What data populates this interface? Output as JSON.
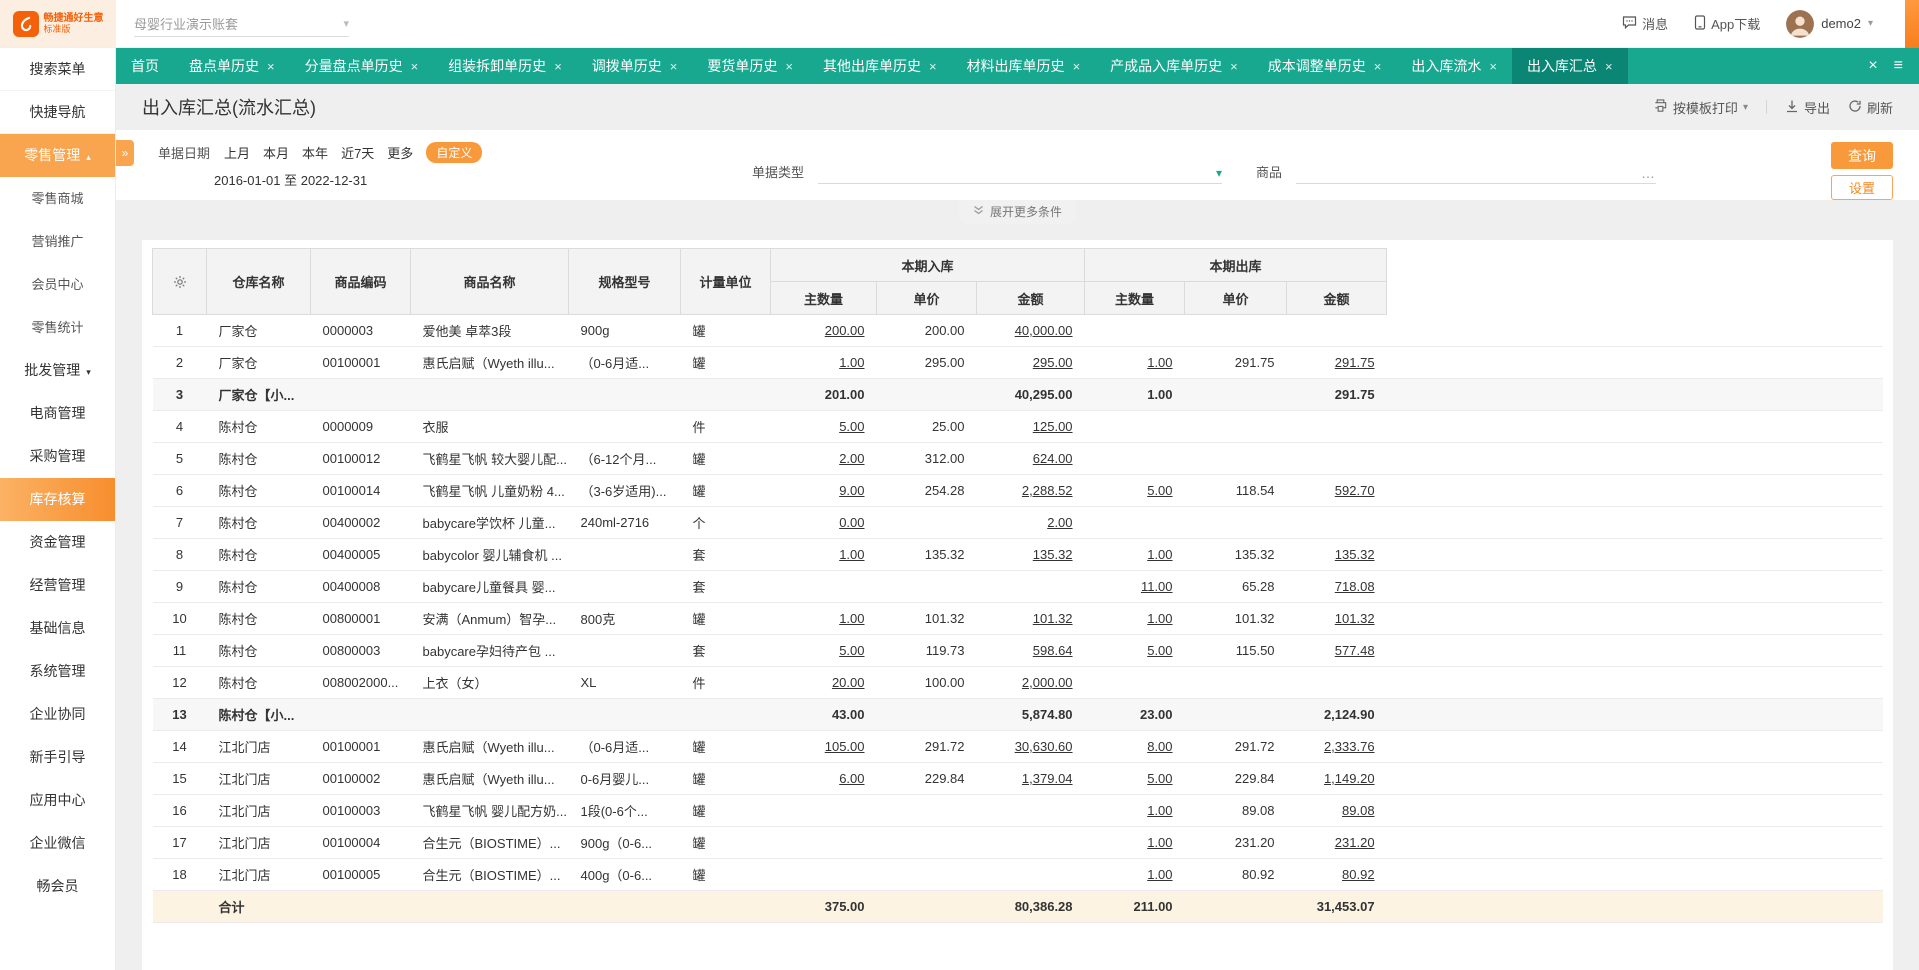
{
  "icons": {
    "close": "×",
    "menu": "≡",
    "expand": "»",
    "ellipsis": "…",
    "caret_down": "▾",
    "caret_up": "▴"
  },
  "topbar": {
    "logo_text": "畅捷通好生意",
    "logo_badge": "标准版",
    "account_select": "母婴行业演示账套",
    "messages_label": "消息",
    "app_download_label": "App下载",
    "username": "demo2"
  },
  "tabs": {
    "items": [
      {
        "label": "首页",
        "closable": false,
        "active": false
      },
      {
        "label": "盘点单历史",
        "closable": true,
        "active": false
      },
      {
        "label": "分量盘点单历史",
        "closable": true,
        "active": false
      },
      {
        "label": "组装拆卸单历史",
        "closable": true,
        "active": false
      },
      {
        "label": "调拨单历史",
        "closable": true,
        "active": false
      },
      {
        "label": "要货单历史",
        "closable": true,
        "active": false
      },
      {
        "label": "其他出库单历史",
        "closable": true,
        "active": false
      },
      {
        "label": "材料出库单历史",
        "closable": true,
        "active": false
      },
      {
        "label": "产成品入库单历史",
        "closable": true,
        "active": false
      },
      {
        "label": "成本调整单历史",
        "closable": true,
        "active": false
      },
      {
        "label": "出入库流水",
        "closable": true,
        "active": false
      },
      {
        "label": "出入库汇总",
        "closable": true,
        "active": true
      }
    ]
  },
  "sidebar": {
    "items": [
      {
        "label": "搜索菜单",
        "type": "item"
      },
      {
        "label": "快捷导航",
        "type": "item"
      },
      {
        "label": "零售管理",
        "type": "group",
        "state": "expanded"
      },
      {
        "label": "零售商城",
        "type": "subitem"
      },
      {
        "label": "营销推广",
        "type": "subitem"
      },
      {
        "label": "会员中心",
        "type": "subitem"
      },
      {
        "label": "零售统计",
        "type": "subitem"
      },
      {
        "label": "批发管理",
        "type": "group",
        "state": "collapsed"
      },
      {
        "label": "电商管理",
        "type": "item"
      },
      {
        "label": "采购管理",
        "type": "item"
      },
      {
        "label": "库存核算",
        "type": "item",
        "active": true
      },
      {
        "label": "资金管理",
        "type": "item"
      },
      {
        "label": "经营管理",
        "type": "item"
      },
      {
        "label": "基础信息",
        "type": "item"
      },
      {
        "label": "系统管理",
        "type": "item"
      },
      {
        "label": "企业协同",
        "type": "item"
      },
      {
        "label": "新手引导",
        "type": "item"
      },
      {
        "label": "应用中心",
        "type": "item"
      },
      {
        "label": "企业微信",
        "type": "item"
      },
      {
        "label": "畅会员",
        "type": "item"
      }
    ]
  },
  "page": {
    "title": "出入库汇总(流水汇总)",
    "print_label": "按模板打印",
    "export_label": "导出",
    "refresh_label": "刷新"
  },
  "filters": {
    "date_label": "单据日期",
    "date_quick": [
      "上月",
      "本月",
      "本年",
      "近7天",
      "更多"
    ],
    "date_custom": "自定义",
    "date_range": "2016-01-01 至 2022-12-31",
    "doc_type_label": "单据类型",
    "product_label": "商品",
    "search_button": "查询",
    "settings_button": "设置",
    "expand_more": "展开更多条件"
  },
  "table": {
    "headers": {
      "warehouse": "仓库名称",
      "code": "商品编码",
      "name": "商品名称",
      "spec": "规格型号",
      "unit": "计量单位",
      "in_group": "本期入库",
      "out_group": "本期出库",
      "qty": "主数量",
      "price": "单价",
      "amount": "金额"
    },
    "rows": [
      {
        "type": "data",
        "idx": "1",
        "warehouse": "厂家仓",
        "code": "0000003",
        "name": "爱他美 卓萃3段",
        "spec": "900g",
        "unit": "罐",
        "in_qty": "200.00",
        "in_price": "200.00",
        "in_amount": "40,000.00",
        "out_qty": "",
        "out_price": "",
        "out_amount": ""
      },
      {
        "type": "data",
        "idx": "2",
        "warehouse": "厂家仓",
        "code": "00100001",
        "name": "惠氏启赋（Wyeth illu...",
        "spec": "（0-6月适...",
        "unit": "罐",
        "in_qty": "1.00",
        "in_price": "295.00",
        "in_amount": "295.00",
        "out_qty": "1.00",
        "out_price": "291.75",
        "out_amount": "291.75"
      },
      {
        "type": "subtotal",
        "idx": "3",
        "warehouse": "厂家仓【小...",
        "code": "",
        "name": "",
        "spec": "",
        "unit": "",
        "in_qty": "201.00",
        "in_price": "",
        "in_amount": "40,295.00",
        "out_qty": "1.00",
        "out_price": "",
        "out_amount": "291.75"
      },
      {
        "type": "data",
        "idx": "4",
        "warehouse": "陈村仓",
        "code": "0000009",
        "name": "衣服",
        "spec": "",
        "unit": "件",
        "in_qty": "5.00",
        "in_price": "25.00",
        "in_amount": "125.00",
        "out_qty": "",
        "out_price": "",
        "out_amount": ""
      },
      {
        "type": "data",
        "idx": "5",
        "warehouse": "陈村仓",
        "code": "00100012",
        "name": "飞鹤星飞帆 较大婴儿配...",
        "spec": "（6-12个月...",
        "unit": "罐",
        "in_qty": "2.00",
        "in_price": "312.00",
        "in_amount": "624.00",
        "out_qty": "",
        "out_price": "",
        "out_amount": ""
      },
      {
        "type": "data",
        "idx": "6",
        "warehouse": "陈村仓",
        "code": "00100014",
        "name": "飞鹤星飞帆 儿童奶粉 4...",
        "spec": "（3-6岁适用)...",
        "unit": "罐",
        "in_qty": "9.00",
        "in_price": "254.28",
        "in_amount": "2,288.52",
        "out_qty": "5.00",
        "out_price": "118.54",
        "out_amount": "592.70"
      },
      {
        "type": "data",
        "idx": "7",
        "warehouse": "陈村仓",
        "code": "00400002",
        "name": "babycare学饮杯 儿童...",
        "spec": "240ml-2716",
        "unit": "个",
        "in_qty": "0.00",
        "in_price": "",
        "in_amount": "2.00",
        "out_qty": "",
        "out_price": "",
        "out_amount": ""
      },
      {
        "type": "data",
        "idx": "8",
        "warehouse": "陈村仓",
        "code": "00400005",
        "name": "babycolor 婴儿辅食机 ...",
        "spec": "",
        "unit": "套",
        "in_qty": "1.00",
        "in_price": "135.32",
        "in_amount": "135.32",
        "out_qty": "1.00",
        "out_price": "135.32",
        "out_amount": "135.32"
      },
      {
        "type": "data",
        "idx": "9",
        "warehouse": "陈村仓",
        "code": "00400008",
        "name": "babycare儿童餐具 婴...",
        "spec": "",
        "unit": "套",
        "in_qty": "",
        "in_price": "",
        "in_amount": "",
        "out_qty": "11.00",
        "out_price": "65.28",
        "out_amount": "718.08"
      },
      {
        "type": "data",
        "idx": "10",
        "warehouse": "陈村仓",
        "code": "00800001",
        "name": "安满（Anmum）智孕...",
        "spec": "800克",
        "unit": "罐",
        "in_qty": "1.00",
        "in_price": "101.32",
        "in_amount": "101.32",
        "out_qty": "1.00",
        "out_price": "101.32",
        "out_amount": "101.32"
      },
      {
        "type": "data",
        "idx": "11",
        "warehouse": "陈村仓",
        "code": "00800003",
        "name": "babycare孕妇待产包 ...",
        "spec": "",
        "unit": "套",
        "in_qty": "5.00",
        "in_price": "119.73",
        "in_amount": "598.64",
        "out_qty": "5.00",
        "out_price": "115.50",
        "out_amount": "577.48"
      },
      {
        "type": "data",
        "idx": "12",
        "warehouse": "陈村仓",
        "code": "008002000...",
        "name": "上衣（女）",
        "spec": "XL",
        "unit": "件",
        "in_qty": "20.00",
        "in_price": "100.00",
        "in_amount": "2,000.00",
        "out_qty": "",
        "out_price": "",
        "out_amount": ""
      },
      {
        "type": "subtotal",
        "idx": "13",
        "warehouse": "陈村仓【小...",
        "code": "",
        "name": "",
        "spec": "",
        "unit": "",
        "in_qty": "43.00",
        "in_price": "",
        "in_amount": "5,874.80",
        "out_qty": "23.00",
        "out_price": "",
        "out_amount": "2,124.90"
      },
      {
        "type": "data",
        "idx": "14",
        "warehouse": "江北门店",
        "code": "00100001",
        "name": "惠氏启赋（Wyeth illu...",
        "spec": "（0-6月适...",
        "unit": "罐",
        "in_qty": "105.00",
        "in_price": "291.72",
        "in_amount": "30,630.60",
        "out_qty": "8.00",
        "out_price": "291.72",
        "out_amount": "2,333.76"
      },
      {
        "type": "data",
        "idx": "15",
        "warehouse": "江北门店",
        "code": "00100002",
        "name": "惠氏启赋（Wyeth illu...",
        "spec": "0-6月婴儿...",
        "unit": "罐",
        "in_qty": "6.00",
        "in_price": "229.84",
        "in_amount": "1,379.04",
        "out_qty": "5.00",
        "out_price": "229.84",
        "out_amount": "1,149.20"
      },
      {
        "type": "data",
        "idx": "16",
        "warehouse": "江北门店",
        "code": "00100003",
        "name": "飞鹤星飞帆 婴儿配方奶...",
        "spec": "1段(0-6个...",
        "unit": "罐",
        "in_qty": "",
        "in_price": "",
        "in_amount": "",
        "out_qty": "1.00",
        "out_price": "89.08",
        "out_amount": "89.08"
      },
      {
        "type": "data",
        "idx": "17",
        "warehouse": "江北门店",
        "code": "00100004",
        "name": "合生元（BIOSTIME）...",
        "spec": "900g（0-6...",
        "unit": "罐",
        "in_qty": "",
        "in_price": "",
        "in_amount": "",
        "out_qty": "1.00",
        "out_price": "231.20",
        "out_amount": "231.20"
      },
      {
        "type": "data",
        "idx": "18",
        "warehouse": "江北门店",
        "code": "00100005",
        "name": "合生元（BIOSTIME）...",
        "spec": "400g（0-6...",
        "unit": "罐",
        "in_qty": "",
        "in_price": "",
        "in_amount": "",
        "out_qty": "1.00",
        "out_price": "80.92",
        "out_amount": "80.92"
      },
      {
        "type": "total",
        "idx": "",
        "warehouse": "合计",
        "code": "",
        "name": "",
        "spec": "",
        "unit": "",
        "in_qty": "375.00",
        "in_price": "",
        "in_amount": "80,386.28",
        "out_qty": "211.00",
        "out_price": "",
        "out_amount": "31,453.07"
      }
    ]
  }
}
